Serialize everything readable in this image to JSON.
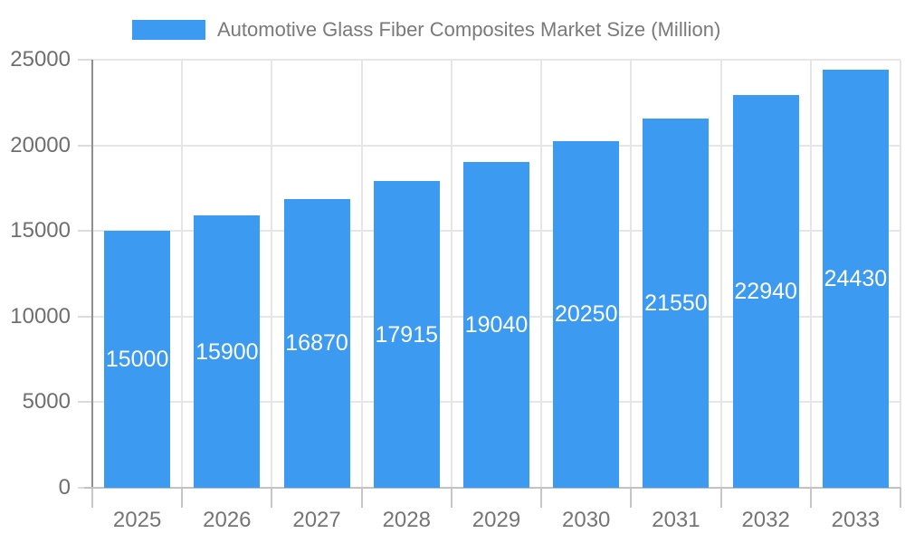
{
  "chart_data": {
    "type": "bar",
    "title": "Automotive Glass Fiber Composites Market Size (Million)",
    "categories": [
      "2025",
      "2026",
      "2027",
      "2028",
      "2029",
      "2030",
      "2031",
      "2032",
      "2033"
    ],
    "series": [
      {
        "name": "Automotive Glass Fiber Composites Market Size (Million)",
        "values": [
          15000,
          15900,
          16870,
          17915,
          19040,
          20250,
          21550,
          22940,
          24430
        ]
      }
    ],
    "value_labels": [
      "15000",
      "15900",
      "16870",
      "17915",
      "19040",
      "20250",
      "21550",
      "22940",
      "24430"
    ],
    "xlabel": "",
    "ylabel": "",
    "ylim": [
      0,
      25000
    ],
    "ytick_interval": 5000,
    "ytick_labels": [
      "0",
      "5000",
      "10000",
      "15000",
      "20000",
      "25000"
    ],
    "grid": true,
    "legend_position": "top",
    "value_label_position": "inside-middle"
  },
  "colors": {
    "bar": "#3c9af0",
    "grid": "#e6e6e6",
    "y_axis": "#8f8f8f",
    "x_axis": "#c2c2c2",
    "tick": "#c6c6c6",
    "axis_text": "#6f6f6f",
    "legend_text": "#7a7a7a",
    "value_text": "#ffffff",
    "background": "#ffffff"
  }
}
